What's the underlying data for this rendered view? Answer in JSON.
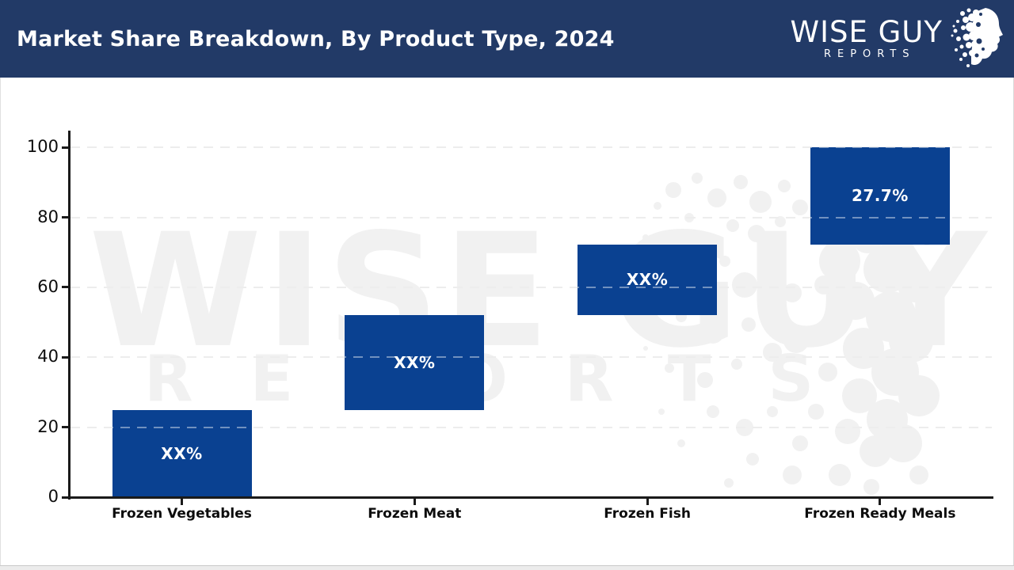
{
  "header": {
    "title": "Market Share Breakdown, By Product Type, 2024",
    "logo": {
      "name": "wise-guy-reports-logo",
      "line1": "WISE GUY",
      "line2": "REPORTS",
      "mark": "dotted-face-profile-icon",
      "background": "#223a67"
    }
  },
  "watermark": {
    "line1": "WISE GUY",
    "line2": "REPORTS",
    "color": "#f1f1f1"
  },
  "chart_data": {
    "type": "bar",
    "variant": "waterfall",
    "title": "Market Share Breakdown, By Product Type, 2024",
    "categories": [
      "Frozen Vegetables",
      "Frozen Meat",
      "Frozen Fish",
      "Frozen Ready Meals"
    ],
    "segments": [
      {
        "category": "Frozen Vegetables",
        "start": 0,
        "end": 25.0,
        "value": 25.0,
        "label": "XX%"
      },
      {
        "category": "Frozen Meat",
        "start": 25.0,
        "end": 52.0,
        "value": 27.0,
        "label": "XX%"
      },
      {
        "category": "Frozen Fish",
        "start": 52.0,
        "end": 72.3,
        "value": 20.3,
        "label": "XX%"
      },
      {
        "category": "Frozen Ready Meals",
        "start": 72.3,
        "end": 100.0,
        "value": 27.7,
        "label": "27.7%"
      }
    ],
    "xlabel": "",
    "ylabel": "",
    "ylim": [
      0,
      105
    ],
    "yticks": [
      0,
      20,
      40,
      60,
      80,
      100
    ],
    "grid": {
      "horizontal": true,
      "style": "dashed"
    },
    "legend": null,
    "bar_color": "#0a4191",
    "bar_label_color": "#ffffff",
    "axis_color": "#1a1a1a",
    "grid_color": "#e0e0e0"
  }
}
